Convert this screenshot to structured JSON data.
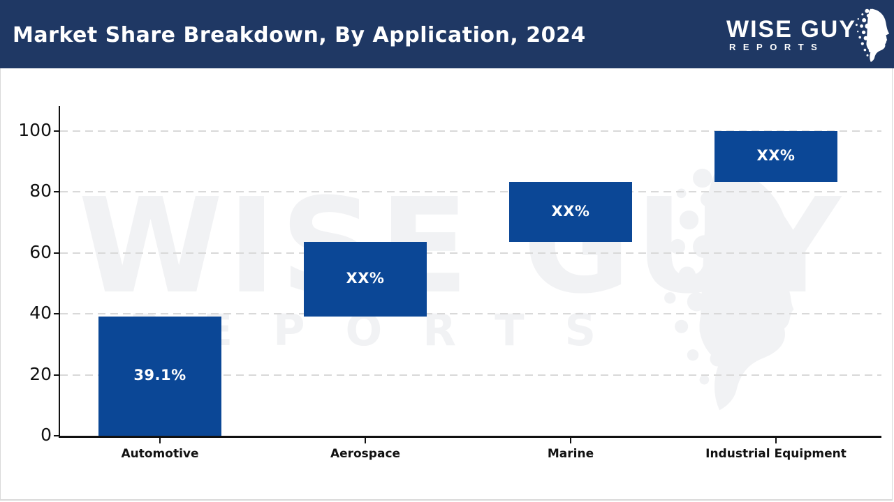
{
  "header": {
    "title": "Market Share Breakdown, By Application, 2024",
    "logo": {
      "primary": "WISE GUY",
      "secondary": "REPORTS"
    }
  },
  "watermark": {
    "primary": "WISE GUY",
    "secondary": "REPORTS"
  },
  "colors": {
    "header_bg": "#1f3864",
    "bar": "#0b4796",
    "bar_label": "#ffffff",
    "grid": "#d9d9d9",
    "axis": "#111111",
    "watermark": "#f1f2f4"
  },
  "chart_data": {
    "type": "bar",
    "variant": "waterfall",
    "title": "Market Share Breakdown, By Application, 2024",
    "xlabel": "",
    "ylabel": "",
    "ylim": [
      0,
      100
    ],
    "yticks": [
      0,
      20,
      40,
      60,
      80,
      100
    ],
    "grid": {
      "horizontal": true,
      "style": "dashed"
    },
    "legend": "none",
    "categories": [
      "Automotive",
      "Aerospace",
      "Marine",
      "Industrial Equipment"
    ],
    "segments": [
      {
        "category": "Automotive",
        "start": 0,
        "end": 39.1,
        "label": "39.1%"
      },
      {
        "category": "Aerospace",
        "start": 39.1,
        "end": 63.6,
        "label": "XX%"
      },
      {
        "category": "Marine",
        "start": 63.6,
        "end": 83.1,
        "label": "XX%"
      },
      {
        "category": "Industrial Equipment",
        "start": 83.1,
        "end": 100,
        "label": "XX%"
      }
    ]
  }
}
